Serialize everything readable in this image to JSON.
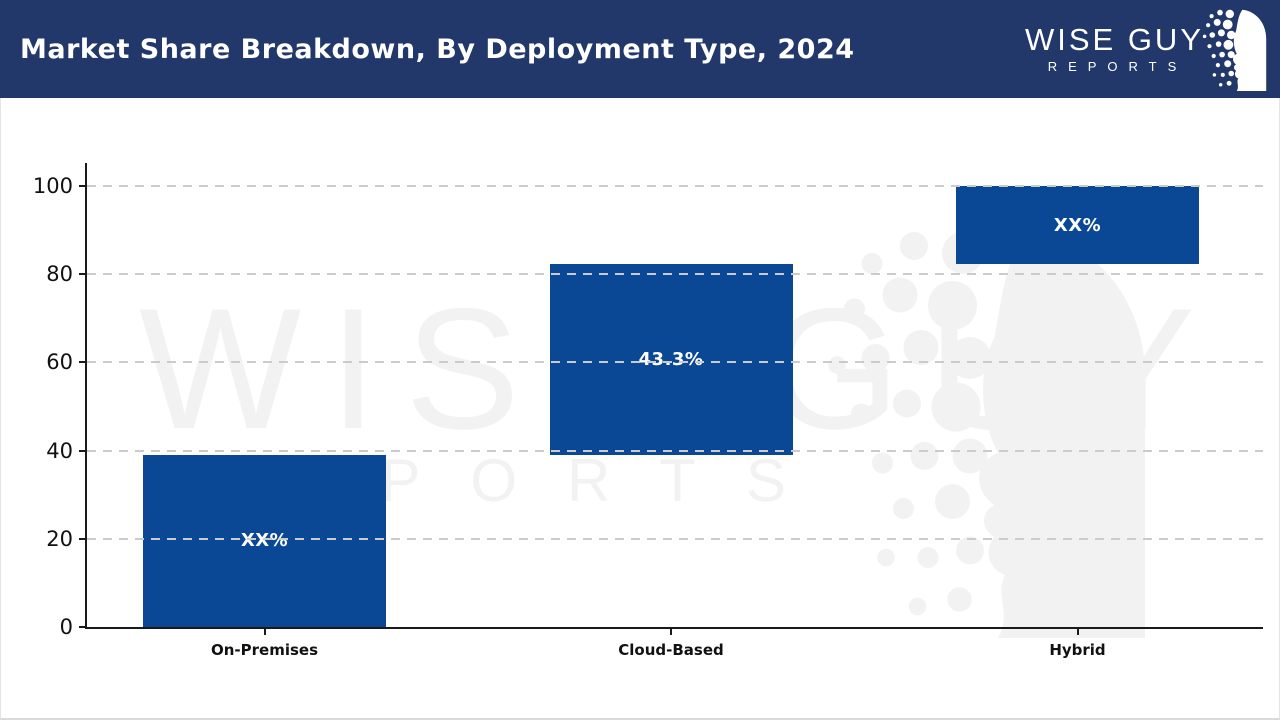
{
  "header": {
    "title": "Market Share Breakdown, By Deployment Type, 2024",
    "bg_color": "#22386B",
    "logo": {
      "line1": "WISE GUY",
      "line2": "REPORTS",
      "icon": "wiseguy-head-icon"
    }
  },
  "watermark": {
    "line1": "WISE GUY",
    "line2": "REPORTS"
  },
  "chart_data": {
    "type": "bar",
    "subtype": "waterfall-floating-bars",
    "title": "Market Share Breakdown, By Deployment Type, 2024",
    "categories": [
      "On-Premises",
      "Cloud-Based",
      "Hybrid"
    ],
    "segments": [
      {
        "category": "On-Premises",
        "start": 0,
        "end": 39,
        "label": "XX%"
      },
      {
        "category": "Cloud-Based",
        "start": 39,
        "end": 82.3,
        "label": "43.3%"
      },
      {
        "category": "Hybrid",
        "start": 82.3,
        "end": 100,
        "label": "XX%"
      }
    ],
    "xlabel": "",
    "ylabel": "",
    "ylim": [
      0,
      100
    ],
    "yticks": [
      0,
      20,
      40,
      60,
      80,
      100
    ],
    "grid": "horizontal-dashed",
    "grid_color": "#cbcbcb",
    "bar_color": "#0A4795",
    "bar_label_color": "#ffffff",
    "axis_color": "#1a1a1a"
  }
}
